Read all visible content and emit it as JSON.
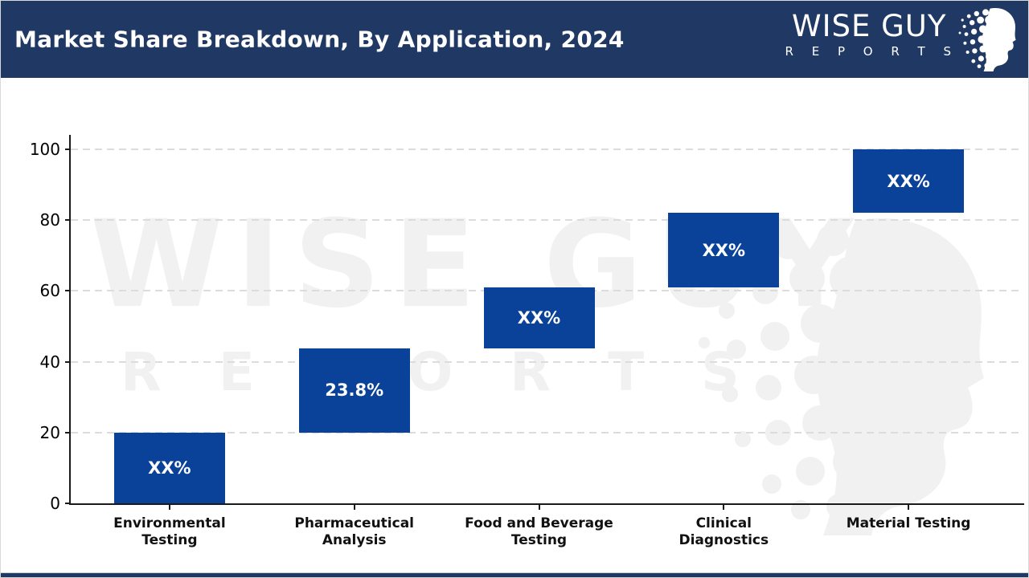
{
  "page": {
    "bg": "#ffffff",
    "frame_color": "#d9d9d9"
  },
  "header": {
    "bg": "#203864",
    "title": "Market Share Breakdown, By Application, 2024",
    "title_color": "#ffffff",
    "logo": {
      "line1": "WISE GUY",
      "line2": "R E P O R T S"
    }
  },
  "watermark": {
    "line1": "WISE GUY",
    "line2": "R E P O R T S",
    "color": "#f1f1f1"
  },
  "footer": {
    "bg": "#203864"
  },
  "chart_data": {
    "type": "bar",
    "variant": "waterfall",
    "title": "Market Share Breakdown, By Application, 2024",
    "xlabel": "",
    "ylabel": "",
    "ylim": [
      0,
      104
    ],
    "yticks": [
      0,
      20,
      40,
      60,
      80,
      100
    ],
    "grid": "horizontal-dashed",
    "grid_color": "#dcdcdc",
    "legend": "none",
    "bar_color": "#0b4299",
    "bar_label_color": "#ffffff",
    "axis_color": "#1a1a1a",
    "categories": [
      "Environmental Testing",
      "Pharmaceutical Analysis",
      "Food and Beverage Testing",
      "Clinical Diagnostics",
      "Material Testing"
    ],
    "category_lines": [
      [
        "Environmental",
        "Testing"
      ],
      [
        "Pharmaceutical",
        "Analysis"
      ],
      [
        "Food and Beverage",
        "Testing"
      ],
      [
        "Clinical",
        "Diagnostics"
      ],
      [
        "Material Testing"
      ]
    ],
    "segments": [
      {
        "category": "Environmental Testing",
        "start": 0,
        "end": 20,
        "label": "XX%"
      },
      {
        "category": "Pharmaceutical Analysis",
        "start": 20,
        "end": 43.8,
        "label": "23.8%"
      },
      {
        "category": "Food and Beverage Testing",
        "start": 43.8,
        "end": 61,
        "label": "XX%"
      },
      {
        "category": "Clinical Diagnostics",
        "start": 61,
        "end": 82,
        "label": "XX%"
      },
      {
        "category": "Material Testing",
        "start": 82,
        "end": 100,
        "label": "XX%"
      }
    ]
  }
}
